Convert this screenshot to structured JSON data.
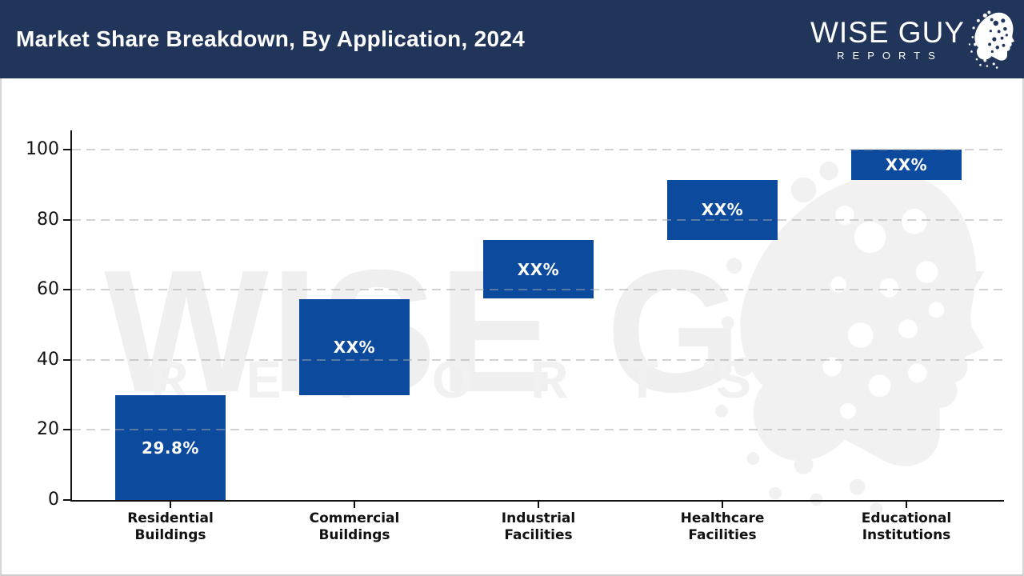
{
  "header": {
    "title": "Market Share Breakdown, By Application, 2024",
    "logo": {
      "primary": "WISE GUY",
      "secondary": "REPORTS"
    }
  },
  "watermark": {
    "primary": "WISE GUY",
    "secondary": "REPORTS"
  },
  "colors": {
    "header_bg": "#21345a",
    "bar": "#0c4a9e",
    "value_label_text": "#ffffff",
    "axis": "#111111",
    "gridline": "#a5a5a5",
    "watermark": "#efefef"
  },
  "chart_data": {
    "type": "bar",
    "variant": "waterfall",
    "title": "Market Share Breakdown, By Application, 2024",
    "xlabel": "",
    "ylabel": "",
    "ylim": [
      0,
      100
    ],
    "yticks": [
      0,
      20,
      40,
      60,
      80,
      100
    ],
    "grid": {
      "horizontal": true,
      "style": "dashed"
    },
    "legend": "none",
    "bars": [
      {
        "category": "Residential Buildings",
        "label_lines": [
          "Residential",
          "Buildings"
        ],
        "start": 0,
        "end": 29.8,
        "value_label": "29.8%"
      },
      {
        "category": "Commercial Buildings",
        "label_lines": [
          "Commercial",
          "Buildings"
        ],
        "start": 29.8,
        "end": 57.4,
        "value_label": "XX%"
      },
      {
        "category": "Industrial Facilities",
        "label_lines": [
          "Industrial",
          "Facilities"
        ],
        "start": 57.5,
        "end": 74.2,
        "value_label": "XX%"
      },
      {
        "category": "Healthcare Facilities",
        "label_lines": [
          "Healthcare",
          "Facilities"
        ],
        "start": 74.2,
        "end": 91.4,
        "value_label": "XX%"
      },
      {
        "category": "Educational Institutions",
        "label_lines": [
          "Educational",
          "Institutions"
        ],
        "start": 91.4,
        "end": 100,
        "value_label": "XX%"
      }
    ]
  }
}
